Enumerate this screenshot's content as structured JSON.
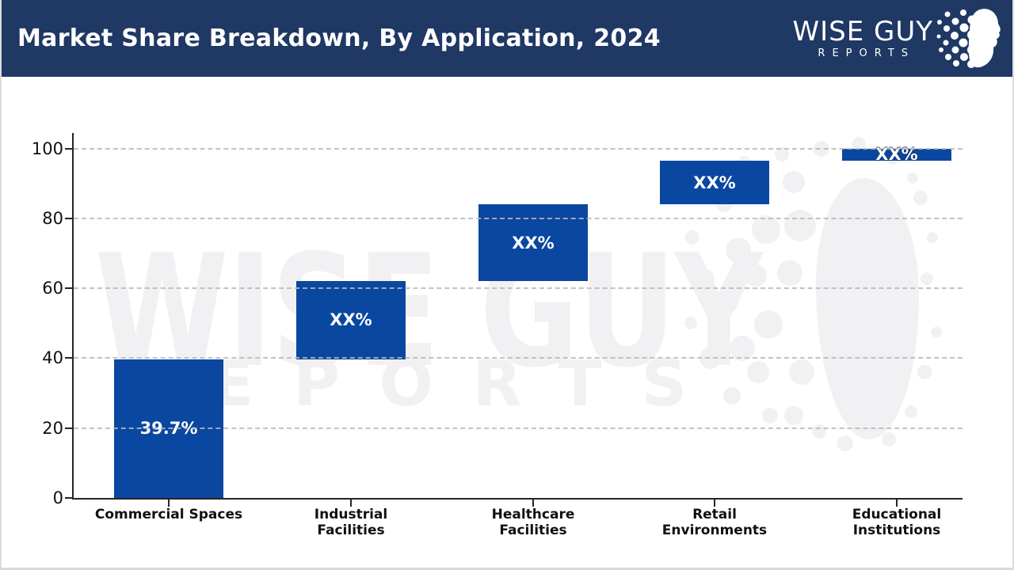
{
  "header": {
    "title": "Market Share Breakdown, By Application, 2024",
    "bg_color": "#1f3864",
    "logo": {
      "line1": "WISE GUY",
      "line2": "REPORTS"
    }
  },
  "watermark": {
    "line1": "WISE GUY",
    "line2": "REPORTS"
  },
  "chart_data": {
    "type": "bar",
    "subtype": "waterfall",
    "title": "Market Share Breakdown, By Application, 2024",
    "categories": [
      "Commercial Spaces",
      "Industrial Facilities",
      "Healthcare Facilities",
      "Retail Environments",
      "Educational Institutions"
    ],
    "category_label_lines": [
      [
        "Commercial Spaces"
      ],
      [
        "Industrial",
        "Facilities"
      ],
      [
        "Healthcare",
        "Facilities"
      ],
      [
        "Retail",
        "Environments"
      ],
      [
        "Educational",
        "Institutions"
      ]
    ],
    "segments": [
      {
        "start": 0,
        "end": 39.7,
        "label": "39.7%"
      },
      {
        "start": 39.7,
        "end": 62,
        "label": "XX%"
      },
      {
        "start": 62,
        "end": 84,
        "label": "XX%"
      },
      {
        "start": 84,
        "end": 96.5,
        "label": "XX%"
      },
      {
        "start": 96.5,
        "end": 100,
        "label": "XX%"
      }
    ],
    "values_shown": [
      "39.7%",
      "XX%",
      "XX%",
      "XX%",
      "XX%"
    ],
    "y_ticks": [
      0,
      20,
      40,
      60,
      80,
      100
    ],
    "ylim": [
      0,
      105
    ],
    "xlabel": "",
    "ylabel": "",
    "grid": "horizontal dashed",
    "bar_color": "#0a47a0",
    "bar_label_color": "#ffffff",
    "axis_color": "#262626",
    "legend": "none"
  }
}
